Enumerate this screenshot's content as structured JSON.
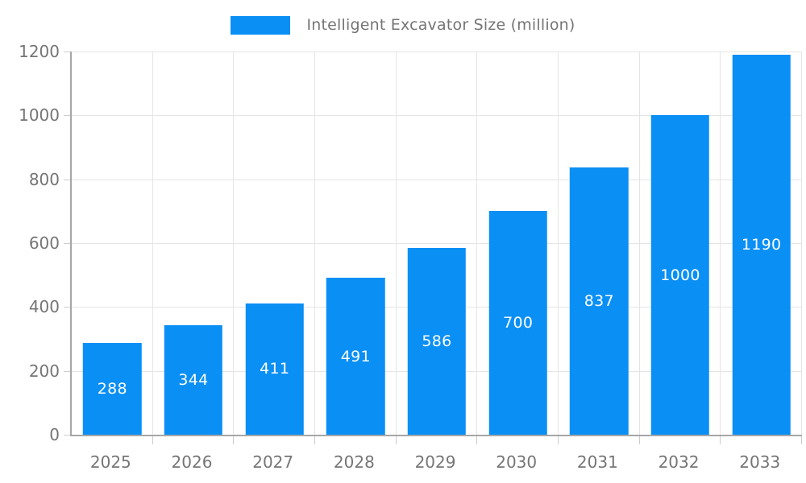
{
  "chart_data": {
    "type": "bar",
    "title": "Intelligent Excavator Size (million)",
    "legend": [
      "Intelligent Excavator Size (million)"
    ],
    "legend_position": "top",
    "categories": [
      "2025",
      "2026",
      "2027",
      "2028",
      "2029",
      "2030",
      "2031",
      "2032",
      "2033"
    ],
    "values": [
      288,
      344,
      411,
      491,
      586,
      700,
      837,
      1000,
      1190
    ],
    "xlabel": "",
    "ylabel": "",
    "ylim": [
      0,
      1200
    ],
    "y_ticks": [
      0,
      200,
      400,
      600,
      800,
      1000,
      1200
    ],
    "grid": true,
    "value_labels_shown": true,
    "colors": {
      "bar": "#0a8ff5",
      "grid": "#e5e5e5",
      "axis": "#a6a6a6",
      "tick": "#cccccc",
      "text": "#757575",
      "value_label": "#ffffff",
      "background": "#ffffff"
    }
  }
}
